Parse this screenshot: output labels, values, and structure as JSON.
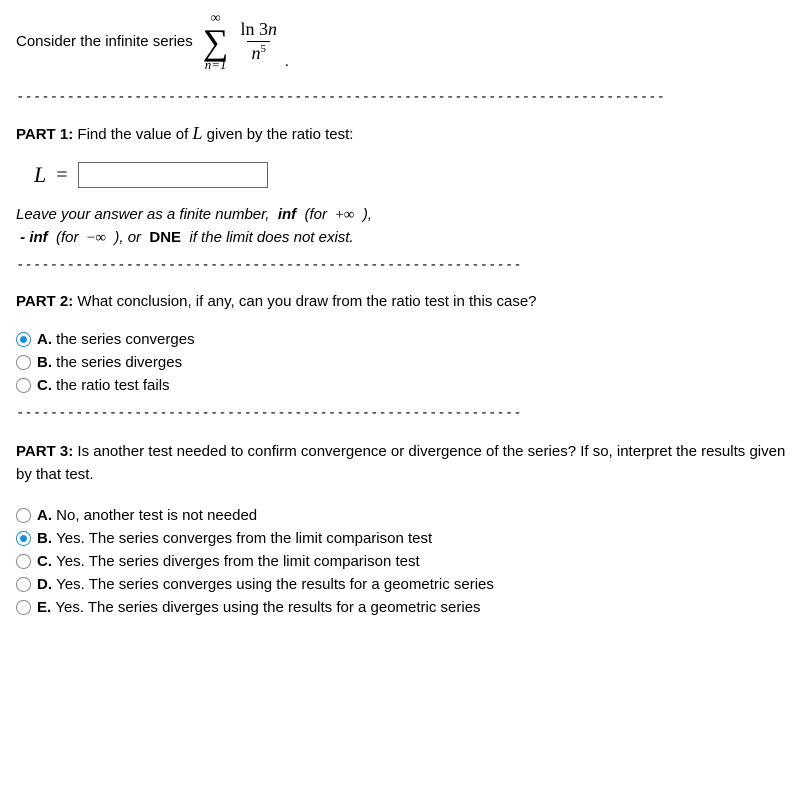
{
  "intro_text": "Consider the infinite series",
  "sigma": {
    "upper": "∞",
    "lower_html": "n=1"
  },
  "fraction": {
    "num_html": "ln 3n",
    "den_html": "n⁵"
  },
  "period": ".",
  "divider": "-----------------------------------------------------------------------------",
  "divider_short": "------------------------------------------------------------",
  "part1": {
    "label": "PART 1:",
    "text": "Find the value of",
    "var": "L",
    "text2": "given by the ratio test:",
    "L": "L",
    "equals": "=",
    "input_value": "",
    "hint_line1_a": "Leave your answer as a finite number,",
    "hint_inf": "inf",
    "hint_line1_b": "(for",
    "hint_pinf": "+∞",
    "hint_line1_c": "),",
    "hint_ninf_lbl": "- inf",
    "hint_line2_a": "(for",
    "hint_ninf": "−∞",
    "hint_line2_b": "), or",
    "hint_dne": "DNE",
    "hint_line2_c": "if the limit does not exist."
  },
  "part2": {
    "label": "PART 2:",
    "text": "What conclusion, if any, can you draw from the ratio test in this case?",
    "options": [
      {
        "letter": "A.",
        "text": "the series converges",
        "selected": true
      },
      {
        "letter": "B.",
        "text": "the series diverges",
        "selected": false
      },
      {
        "letter": "C.",
        "text": "the ratio test fails",
        "selected": false
      }
    ]
  },
  "part3": {
    "label": "PART 3:",
    "text": "Is another test needed to confirm convergence or divergence of the series? If so, interpret the results given by that test.",
    "options": [
      {
        "letter": "A.",
        "text": "No, another test is not needed",
        "selected": false
      },
      {
        "letter": "B.",
        "text": "Yes. The series converges from the limit comparison test",
        "selected": true
      },
      {
        "letter": "C.",
        "text": "Yes. The series diverges from the limit comparison test",
        "selected": false
      },
      {
        "letter": "D.",
        "text": "Yes. The series converges using the results for a geometric series",
        "selected": false
      },
      {
        "letter": "E.",
        "text": "Yes. The series diverges using the results for a geometric series",
        "selected": false
      }
    ]
  }
}
